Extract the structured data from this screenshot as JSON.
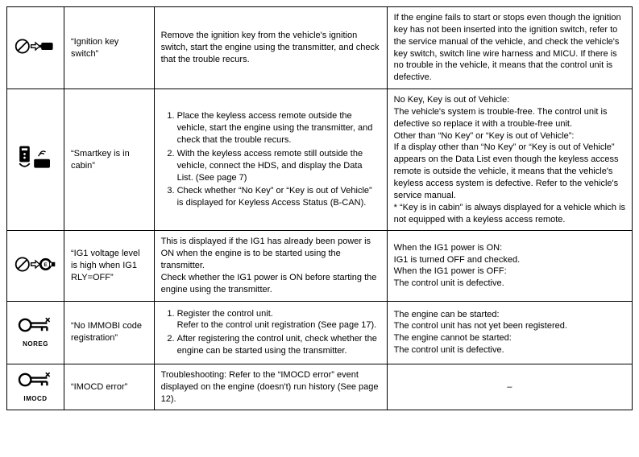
{
  "rows": [
    {
      "icon_label": "",
      "name": "“Ignition key switch”",
      "procedure_text": "Remove the ignition key from the vehicle's ignition switch, start the engine using the transmitter, and check that the trouble recurs.",
      "diagnosis_text": "If the engine fails to start or stops even though the ignition key has not been inserted into the ignition switch, refer to the service manual of the vehicle, and check the vehicle's key switch, switch line wire harness and MICU. If there is no trouble in the vehicle, it means that the control unit is defective."
    },
    {
      "icon_label": "",
      "name": "“Smartkey is in cabin”",
      "procedure_list": [
        "Place the keyless access remote outside the vehicle, start the engine using the transmitter, and check that the trouble recurs.",
        "With the keyless access remote still outside the vehicle, connect the HDS, and display the Data List. (See page 7)",
        "Check whether “No Key” or “Key is out of Vehicle” is displayed for Keyless Access Status (B-CAN)."
      ],
      "diagnosis_lines": [
        "No Key, Key is out of Vehicle:",
        "The vehicle's system is trouble-free. The control unit is defective so replace it with a trouble-free unit.",
        "Other than “No Key” or “Key is out of Vehicle”:",
        "If a display other than “No Key” or “Key is out of Vehicle” appears on the Data List even though the keyless access remote is outside the vehicle, it means that the vehicle's keyless access system is defective. Refer to the vehicle's service manual.",
        "* “Key is in cabin” is always displayed for a vehicle which is not equipped with a keyless access remote."
      ]
    },
    {
      "icon_label": "",
      "name": "“IG1 voltage level is high when IG1 RLY=OFF”",
      "procedure_lines": [
        "This is displayed if the IG1 has already been power is ON when the engine is to be started using the transmitter.",
        "Check whether the IG1 power is ON before starting the engine using the transmitter."
      ],
      "diagnosis_lines": [
        "When the IG1 power is ON:",
        "IG1 is turned OFF and checked.",
        "When the IG1 power is OFF:",
        "The control unit is defective."
      ]
    },
    {
      "icon_label": "NOREG",
      "name": "“No IMMOBI code registration”",
      "procedure_list": [
        "Register the control unit.\nRefer to the control unit registration (See page 17).",
        "After registering the control unit, check whether the engine can be started using the transmitter."
      ],
      "diagnosis_lines": [
        "The engine can be started:",
        "The control unit has not yet been registered.",
        "The engine cannot be started:",
        "The control unit is defective."
      ]
    },
    {
      "icon_label": "IMOCD",
      "name": "“IMOCD error”",
      "procedure_text": "Troubleshooting: Refer to the “IMOCD error” event displayed on the engine (doesn't) run history (See page 12).",
      "diagnosis_text": "–"
    }
  ],
  "icons": {
    "row0_svg": "<svg viewBox='0 0 60 30' width='54' height='27'><circle cx='12' cy='15' r='9' fill='none' stroke='#000' stroke-width='2'/><line x1='6' y1='21' x2='18' y2='9' stroke='#000' stroke-width='2'/><path d='M24 13 h6 v-3 l6 5 -6 5 v-3 h-6 z' fill='none' stroke='#000' stroke-width='1.5'/><rect x='38' y='10' width='16' height='10' rx='2' fill='#000'/><rect x='36' y='13' width='4' height='4' fill='#000'/></svg>",
    "row1_svg": "<svg viewBox='0 0 60 40' width='54' height='36'><rect x='8' y='4' width='14' height='22' rx='2' fill='#000'/><rect x='11' y='7' width='8' height='3' fill='#fff'/><circle cx='15' cy='15' r='1.5' fill='#fff'/><circle cx='15' cy='20' r='1.5' fill='#fff'/><path d='M8 28 q7 8 14 0' fill='none' stroke='#000' stroke-width='2'/><rect x='28' y='22' width='22' height='12' rx='2' fill='#000'/><path d='M34 18 q3 -6 8 -3' fill='none' stroke='#000' stroke-width='1.5'/><path d='M36 15 q3 -6 8 -3' fill='none' stroke='#000' stroke-width='1.5'/></svg>",
    "row2_svg": "<svg viewBox='0 0 60 30' width='54' height='27'><circle cx='12' cy='15' r='9' fill='none' stroke='#000' stroke-width='2'/><line x1='6' y1='21' x2='18' y2='9' stroke='#000' stroke-width='2'/><path d='M24 13 h6 v-3 l6 5 -6 5 v-3 h-6 z' fill='none' stroke='#000' stroke-width='1.5'/><circle cx='44' cy='15' r='7' fill='none' stroke='#000' stroke-width='3'/><rect x='49' y='12' width='8' height='6' fill='#000'/><rect x='50' y='13' width='2' height='4' fill='#fff'/><text x='44' y='18' font-size='7' font-weight='bold' text-anchor='middle' fill='#000'>E</text></svg>",
    "row3_svg": "<svg viewBox='0 0 60 30' width='54' height='24'><circle cx='14' cy='15' r='9' fill='none' stroke='#000' stroke-width='3'/><line x1='21' y1='12' x2='48' y2='12' stroke='#000' stroke-width='3'/><line x1='21' y1='18' x2='48' y2='18' stroke='#000' stroke-width='3'/><line x1='40' y1='18' x2='40' y2='24' stroke='#000' stroke-width='3'/><line x1='48' y1='18' x2='48' y2='24' stroke='#000' stroke-width='3'/><line x1='46' y1='4' x2='52' y2='10' stroke='#000' stroke-width='2'/><line x1='52' y1='4' x2='46' y2='10' stroke='#000' stroke-width='2'/></svg>",
    "row4_svg": "<svg viewBox='0 0 60 30' width='54' height='24'><circle cx='14' cy='15' r='9' fill='none' stroke='#000' stroke-width='3'/><line x1='21' y1='12' x2='48' y2='12' stroke='#000' stroke-width='3'/><line x1='21' y1='18' x2='48' y2='18' stroke='#000' stroke-width='3'/><line x1='40' y1='18' x2='40' y2='24' stroke='#000' stroke-width='3'/><line x1='48' y1='18' x2='48' y2='24' stroke='#000' stroke-width='3'/><line x1='46' y1='4' x2='52' y2='10' stroke='#000' stroke-width='2'/><line x1='52' y1='4' x2='46' y2='10' stroke='#000' stroke-width='2'/></svg>"
  }
}
